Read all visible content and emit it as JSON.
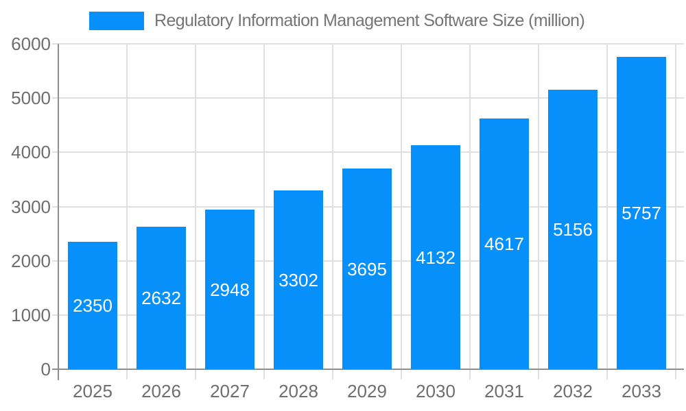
{
  "chart_data": {
    "type": "bar",
    "title": "Regulatory Information Management Software Size (million)",
    "legend": [
      "Regulatory Information Management Software Size (million)"
    ],
    "legend_position": "top",
    "categories": [
      "2025",
      "2026",
      "2027",
      "2028",
      "2029",
      "2030",
      "2031",
      "2032",
      "2033"
    ],
    "values": [
      2350,
      2632,
      2948,
      3302,
      3695,
      4132,
      4617,
      5156,
      5757
    ],
    "xlabel": "",
    "ylabel": "",
    "ylim": [
      0,
      6000
    ],
    "ytick_step": 1000,
    "yticks": [
      0,
      1000,
      2000,
      3000,
      4000,
      5000,
      6000
    ],
    "grid": true,
    "bar_labels_visible": true,
    "colors": {
      "bar": "#0890FA",
      "bar_label": "#FFFFFF",
      "axis_text": "#6E6E6E",
      "title_text": "#757575",
      "grid": "#E0E0E0",
      "axis_line": "#8F8F8F",
      "background": "#FFFFFF"
    }
  }
}
